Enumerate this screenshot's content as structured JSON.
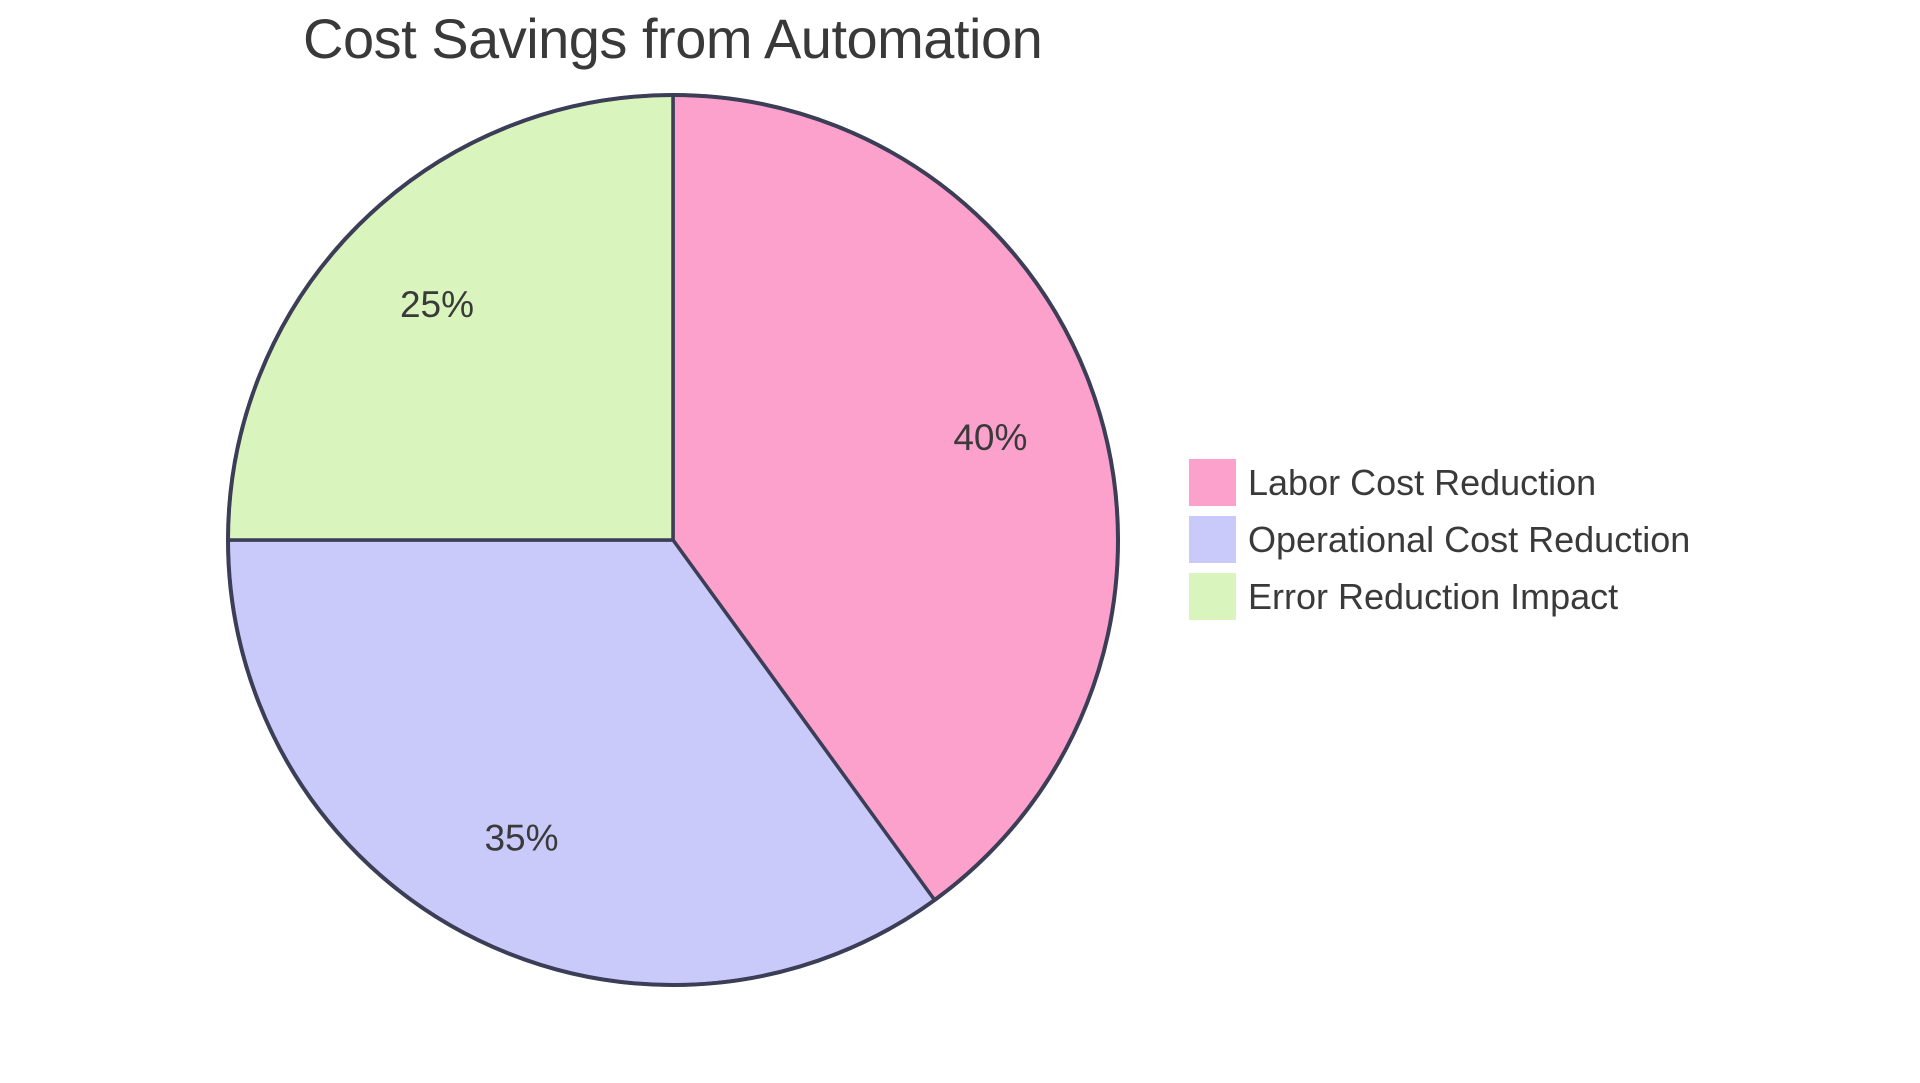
{
  "page": {
    "background": "#FFFFFF"
  },
  "chart_data": {
    "type": "pie",
    "title": "Cost Savings from Automation",
    "slices": [
      {
        "label": "Labor Cost Reduction",
        "value": 40,
        "display": "40%",
        "color": "#FBA1CC"
      },
      {
        "label": "Operational Cost Reduction",
        "value": 35,
        "display": "35%",
        "color": "#C9CAFA"
      },
      {
        "label": "Error Reduction Impact",
        "value": 25,
        "display": "25%",
        "color": "#D9F5BD"
      }
    ],
    "start_angle_deg": 0,
    "direction": "clockwise",
    "legend_position": "right",
    "border_color": "#3B3E56",
    "border_width": 3.5,
    "label_color": "#3A3A3A",
    "title_color": "#393939"
  }
}
